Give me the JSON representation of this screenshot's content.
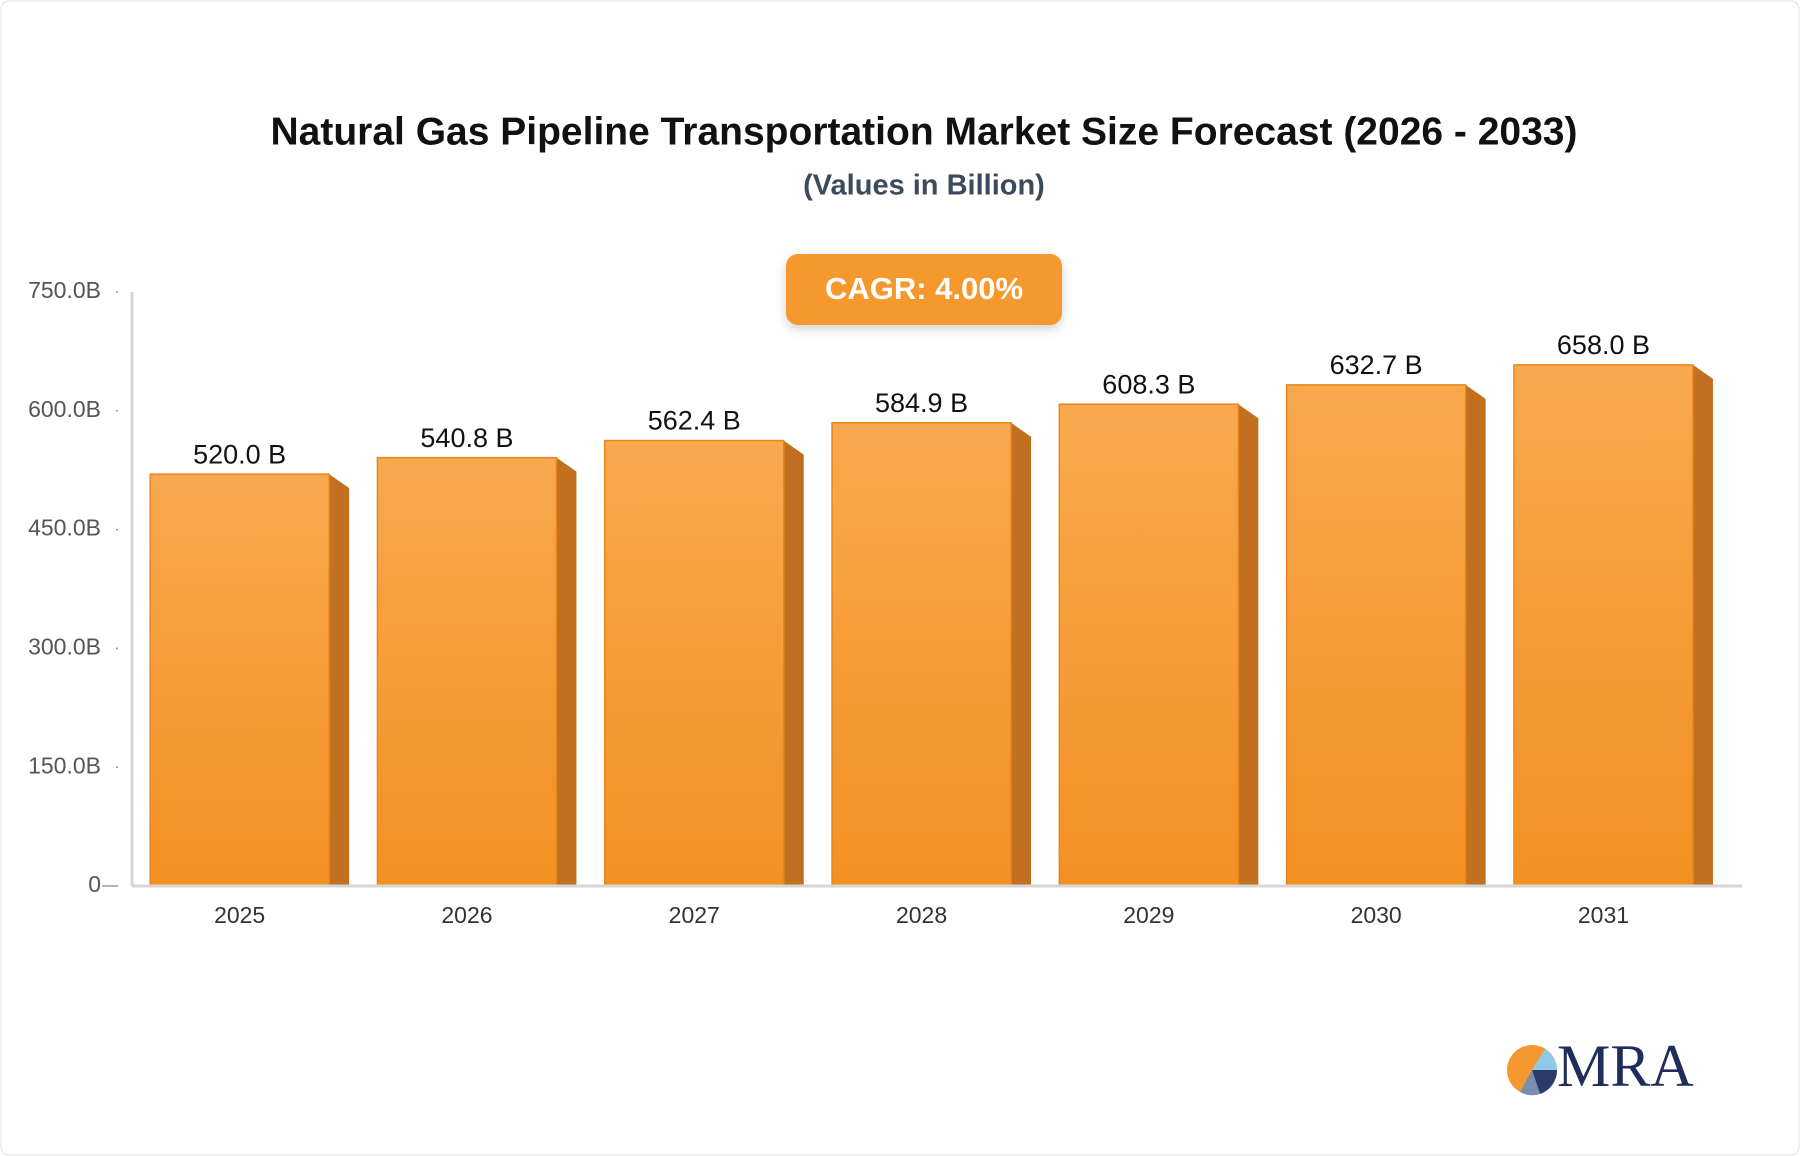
{
  "chart_data": {
    "type": "bar",
    "title": "Natural Gas Pipeline Transportation Market Size Forecast (2026 - 2033)",
    "subtitle": "(Values in Billion)",
    "annotation": "CAGR: 4.00%",
    "categories": [
      "2025",
      "2026",
      "2027",
      "2028",
      "2029",
      "2030",
      "2031"
    ],
    "values": [
      520.0,
      540.8,
      562.4,
      584.9,
      608.3,
      632.7,
      658.0
    ],
    "value_labels": [
      "520.0 B",
      "540.8 B",
      "562.4 B",
      "584.9 B",
      "608.3 B",
      "632.7 B",
      "658.0 B"
    ],
    "color": "#f5982f",
    "ylim": [
      0,
      750
    ],
    "yticks": [
      0,
      {
        "value": 150,
        "label": "150.0B"
      },
      {
        "value": 300,
        "label": "300.0B"
      },
      {
        "value": 450,
        "label": "450.0B"
      },
      {
        "value": 600,
        "label": "600.0B"
      },
      {
        "value": 750,
        "label": "750.0B"
      }
    ],
    "grid": false
  },
  "logo": "MRA"
}
